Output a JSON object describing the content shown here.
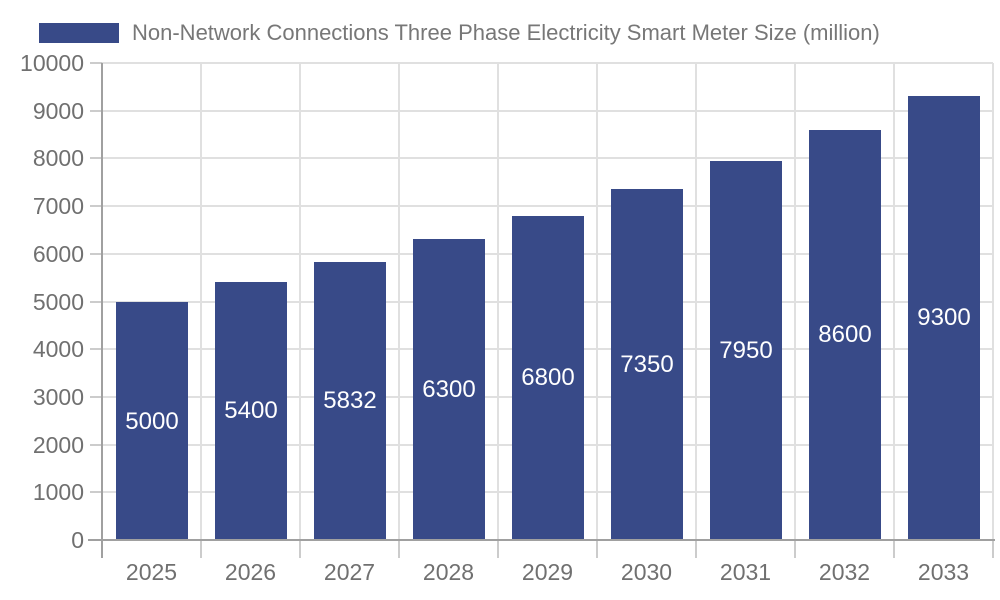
{
  "colors": {
    "bar": "#384A88",
    "grid": "#e0e0e0",
    "tick": "#cccccc",
    "axis_line": "#a0a0a0",
    "title_text": "#777777",
    "axis_text": "#707070",
    "bar_label_text": "#ffffff",
    "background": "#ffffff"
  },
  "chart_data": {
    "type": "bar",
    "title": "Non-Network Connections Three Phase Electricity Smart Meter Size (million)",
    "legend": [
      "Non-Network Connections Three Phase Electricity Smart Meter Size (million)"
    ],
    "legend_position": "top-left",
    "categories": [
      "2025",
      "2026",
      "2027",
      "2028",
      "2029",
      "2030",
      "2031",
      "2032",
      "2033"
    ],
    "values": [
      5000,
      5400,
      5832,
      6300,
      6800,
      7350,
      7950,
      8600,
      9300
    ],
    "xlabel": "",
    "ylabel": "",
    "ylim": [
      0,
      10000
    ],
    "ytick_interval": 1000,
    "ytick_labels": [
      "0",
      "1000",
      "2000",
      "3000",
      "4000",
      "5000",
      "6000",
      "7000",
      "8000",
      "9000",
      "10000"
    ],
    "grid": true,
    "bar_value_labels": true,
    "bar_value_label_position": "center"
  }
}
